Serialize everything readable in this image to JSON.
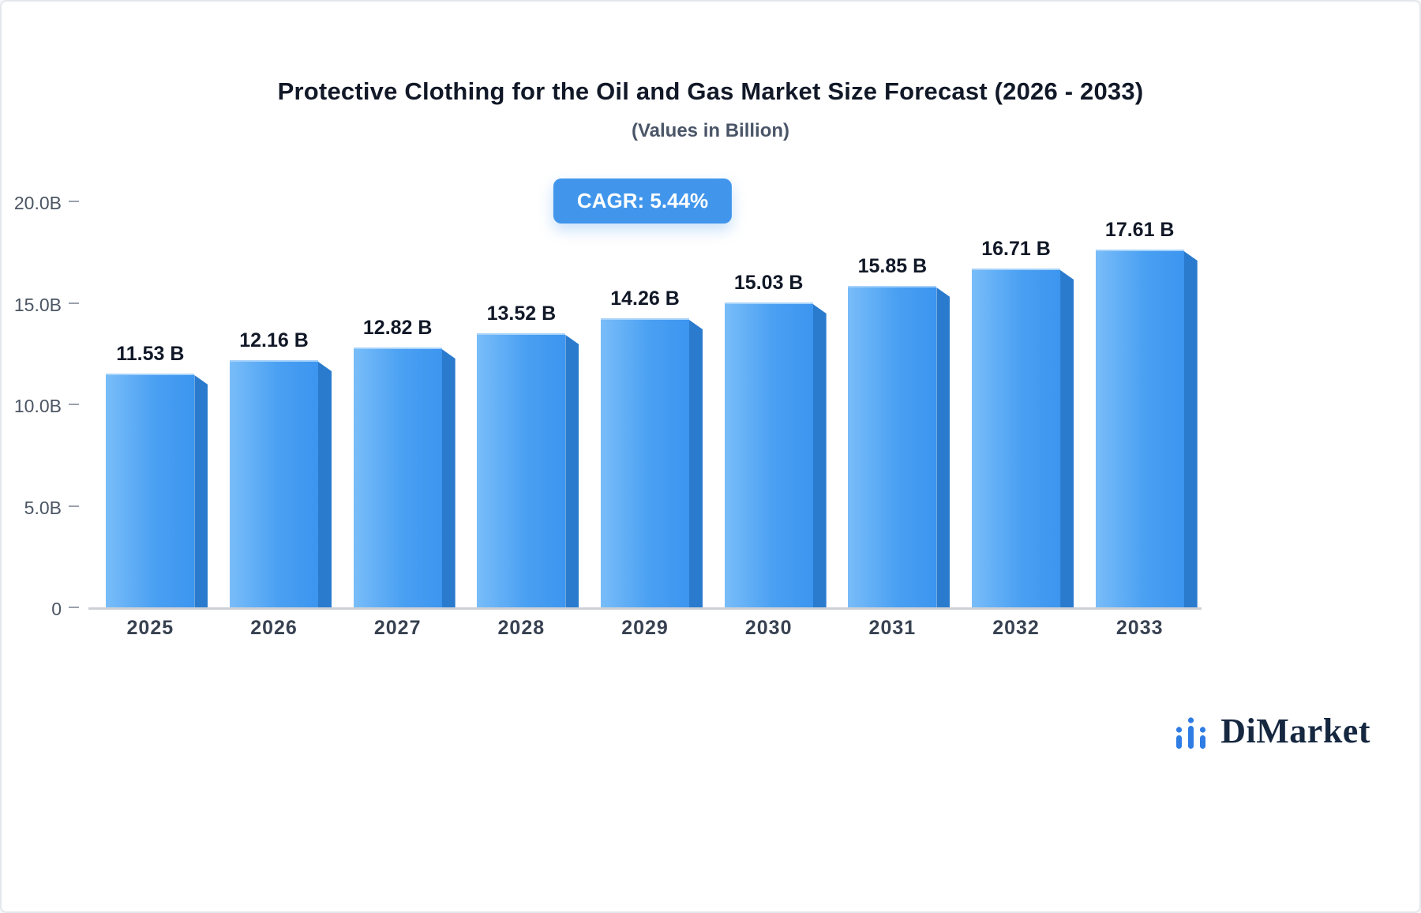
{
  "title": "Protective Clothing for the Oil and Gas Market Size Forecast (2026 - 2033)",
  "subtitle": "(Values in Billion)",
  "cagr_label": "CAGR: 5.44%",
  "brand": {
    "name": "DiMarket"
  },
  "colors": {
    "badge": "#4196ec",
    "bar_face_light": "#79bdf9",
    "bar_face": "#3c95ef",
    "bar_side": "#2a7bce",
    "brand_blue": "#2e7ce4",
    "text_dark": "#111827",
    "axis_text": "#4b5563"
  },
  "chart_data": {
    "type": "bar",
    "title": "Protective Clothing for the Oil and Gas Market Size Forecast (2026 - 2033)",
    "subtitle": "(Values in Billion)",
    "xlabel": "",
    "ylabel": "",
    "categories": [
      "2025",
      "2026",
      "2027",
      "2028",
      "2029",
      "2030",
      "2031",
      "2032",
      "2033"
    ],
    "values": [
      11.53,
      12.16,
      12.82,
      13.52,
      14.26,
      15.03,
      15.85,
      16.71,
      17.61
    ],
    "labels": [
      "11.53 B",
      "12.16 B",
      "12.82 B",
      "13.52 B",
      "14.26 B",
      "15.03 B",
      "15.85 B",
      "16.71 B",
      "17.61 B"
    ],
    "ylim": [
      0,
      20
    ],
    "yticks": [
      "20.0B",
      "15.0B",
      "10.0B",
      "5.0B",
      "0"
    ],
    "ytick_values": [
      20,
      15,
      10,
      5,
      0
    ],
    "grid": false,
    "legend": false,
    "annotation": "CAGR: 5.44%"
  }
}
